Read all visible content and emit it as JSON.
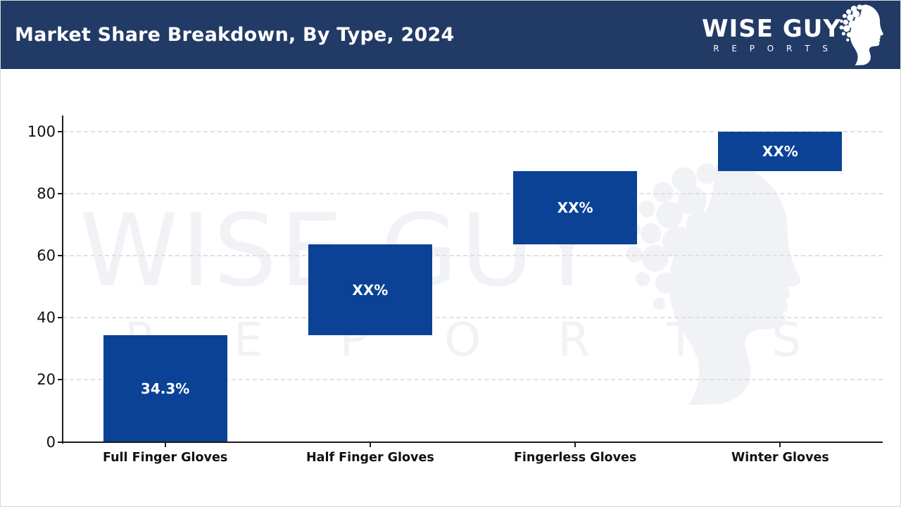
{
  "header": {
    "title": "Market Share Breakdown, By Type, 2024",
    "bg_color": "#223a66",
    "brand": {
      "line1": "WISE GUY",
      "line2": "R E P O R T S"
    }
  },
  "watermark": {
    "line1": "WISE GUY",
    "line2": "R E P O R T S"
  },
  "chart_data": {
    "type": "bar",
    "subtype": "waterfall",
    "title": "Market Share Breakdown, By Type, 2024",
    "categories": [
      "Full Finger Gloves",
      "Half Finger Gloves",
      "Fingerless Gloves",
      "Winter Gloves"
    ],
    "segments": [
      {
        "category": "Full Finger Gloves",
        "base": 0,
        "top": 34.3,
        "label": "34.3%"
      },
      {
        "category": "Half Finger Gloves",
        "base": 34.3,
        "top": 63.6,
        "label": "XX%"
      },
      {
        "category": "Fingerless Gloves",
        "base": 63.6,
        "top": 87.2,
        "label": "XX%"
      },
      {
        "category": "Winter Gloves",
        "base": 87.2,
        "top": 100,
        "label": "XX%"
      }
    ],
    "yticks": [
      0,
      20,
      40,
      60,
      80,
      100
    ],
    "ylim": [
      0,
      100
    ],
    "xlabel": "",
    "ylabel": "",
    "grid": "horizontal-dashed",
    "legend": "none",
    "bar_color": "#0b4296",
    "bar_label_color": "#ffffff",
    "axis_color": "#1a1a1a",
    "grid_color": "#e0e0e0"
  }
}
